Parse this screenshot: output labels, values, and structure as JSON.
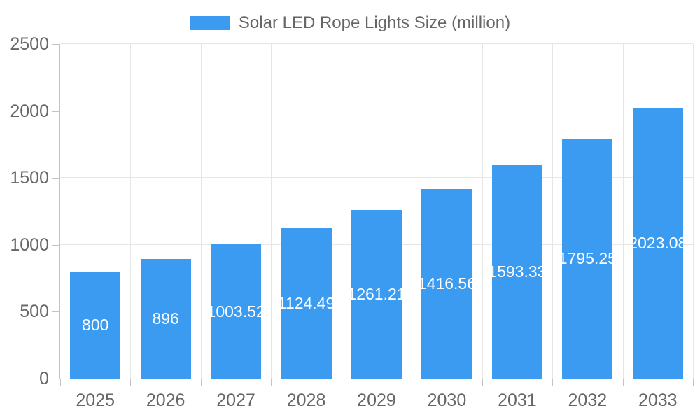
{
  "legend": {
    "label": "Solar LED Rope Lights Size (million)"
  },
  "chart_data": {
    "type": "bar",
    "title": "Solar LED Rope Lights Size (million)",
    "series_name": "Solar LED Rope Lights Size (million)",
    "categories": [
      "2025",
      "2026",
      "2027",
      "2028",
      "2029",
      "2030",
      "2031",
      "2032",
      "2033"
    ],
    "values": [
      800,
      896,
      1003.52,
      1124.49,
      1261.21,
      1416.56,
      1593.33,
      1795.25,
      2023.08
    ],
    "value_labels": [
      "800",
      "896",
      "1003.52",
      "1124.49",
      "1261.21",
      "1416.56",
      "1593.33",
      "1795.25",
      "2023.08"
    ],
    "xlabel": "",
    "ylabel": "",
    "ylim": [
      0,
      2500
    ],
    "yticks": [
      0,
      500,
      1000,
      1500,
      2000,
      2500
    ],
    "grid": true,
    "legend_position": "top",
    "colors": {
      "bar": "#3b9bf1",
      "grid": "#e6e6e6",
      "axis": "#c3c3c3",
      "tick_text": "#666666",
      "bar_label_text": "#ffffff",
      "background": "#ffffff"
    }
  }
}
